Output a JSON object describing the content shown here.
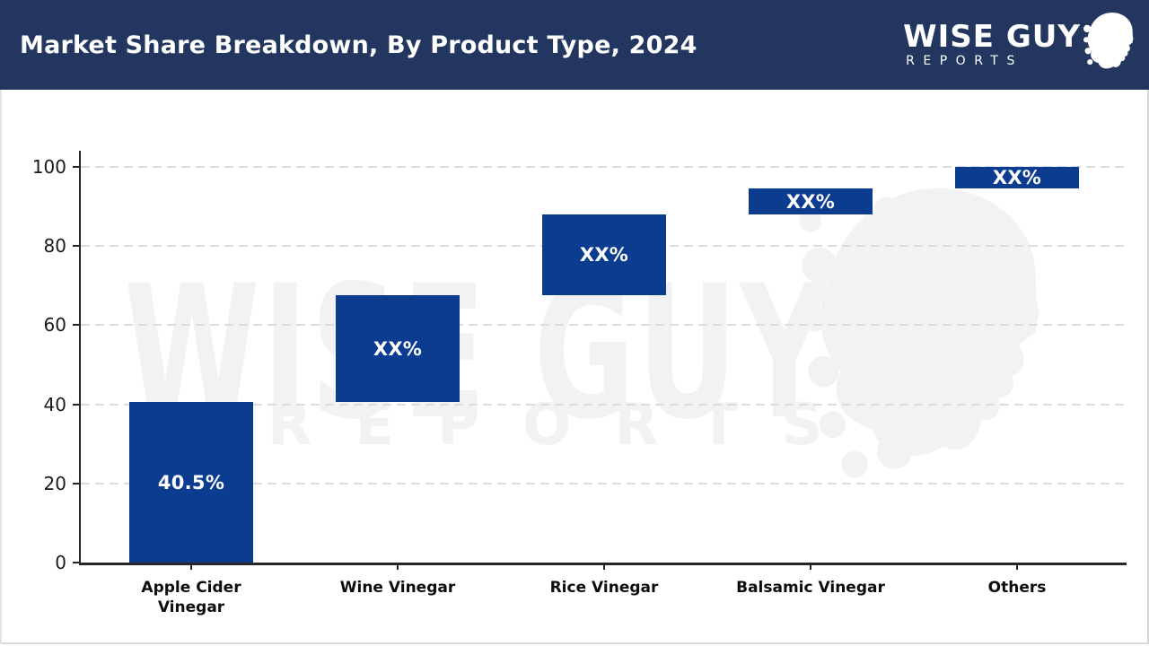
{
  "header": {
    "title": "Market Share Breakdown, By Product Type, 2024",
    "logo": {
      "wordmark": "WISE GUY",
      "subtext": "REPORTS"
    }
  },
  "watermark": {
    "wordmark": "WISE GUY",
    "subtext": "REPORTS"
  },
  "colors": {
    "header_bg": "#22365f",
    "bar": "#0c3c90",
    "bar_label_text": "#ffffff",
    "grid": "#dcdcdc",
    "axis": "#262626",
    "watermark": "#f2f2f4"
  },
  "chart_data": {
    "type": "bar",
    "subtype": "waterfall (floating stacked segments)",
    "title": "Market Share Breakdown, By Product Type, 2024",
    "xlabel": "",
    "ylabel": "",
    "categories": [
      "Apple Cider Vinegar",
      "Wine Vinegar",
      "Rice Vinegar",
      "Balsamic Vinegar",
      "Others"
    ],
    "category_label_lines": [
      [
        "Apple Cider",
        "Vinegar"
      ],
      [
        "Wine Vinegar"
      ],
      [
        "Rice Vinegar"
      ],
      [
        "Balsamic Vinegar"
      ],
      [
        "Others"
      ]
    ],
    "segments": [
      {
        "category": "Apple Cider Vinegar",
        "start": 0,
        "end": 40.5,
        "value": 40.5,
        "label": "40.5%"
      },
      {
        "category": "Wine Vinegar",
        "start": 40.5,
        "end": 67.5,
        "value": 27,
        "label": "XX%"
      },
      {
        "category": "Rice Vinegar",
        "start": 67.5,
        "end": 88,
        "value": 20.5,
        "label": "XX%"
      },
      {
        "category": "Balsamic Vinegar",
        "start": 88,
        "end": 94.5,
        "value": 6.5,
        "label": "XX%"
      },
      {
        "category": "Others",
        "start": 94.5,
        "end": 100,
        "value": 5.5,
        "label": "XX%"
      }
    ],
    "yticks": [
      0,
      20,
      40,
      60,
      80,
      100
    ],
    "ylim": [
      0,
      100
    ],
    "grid": "horizontal dashed",
    "legend": "none"
  }
}
